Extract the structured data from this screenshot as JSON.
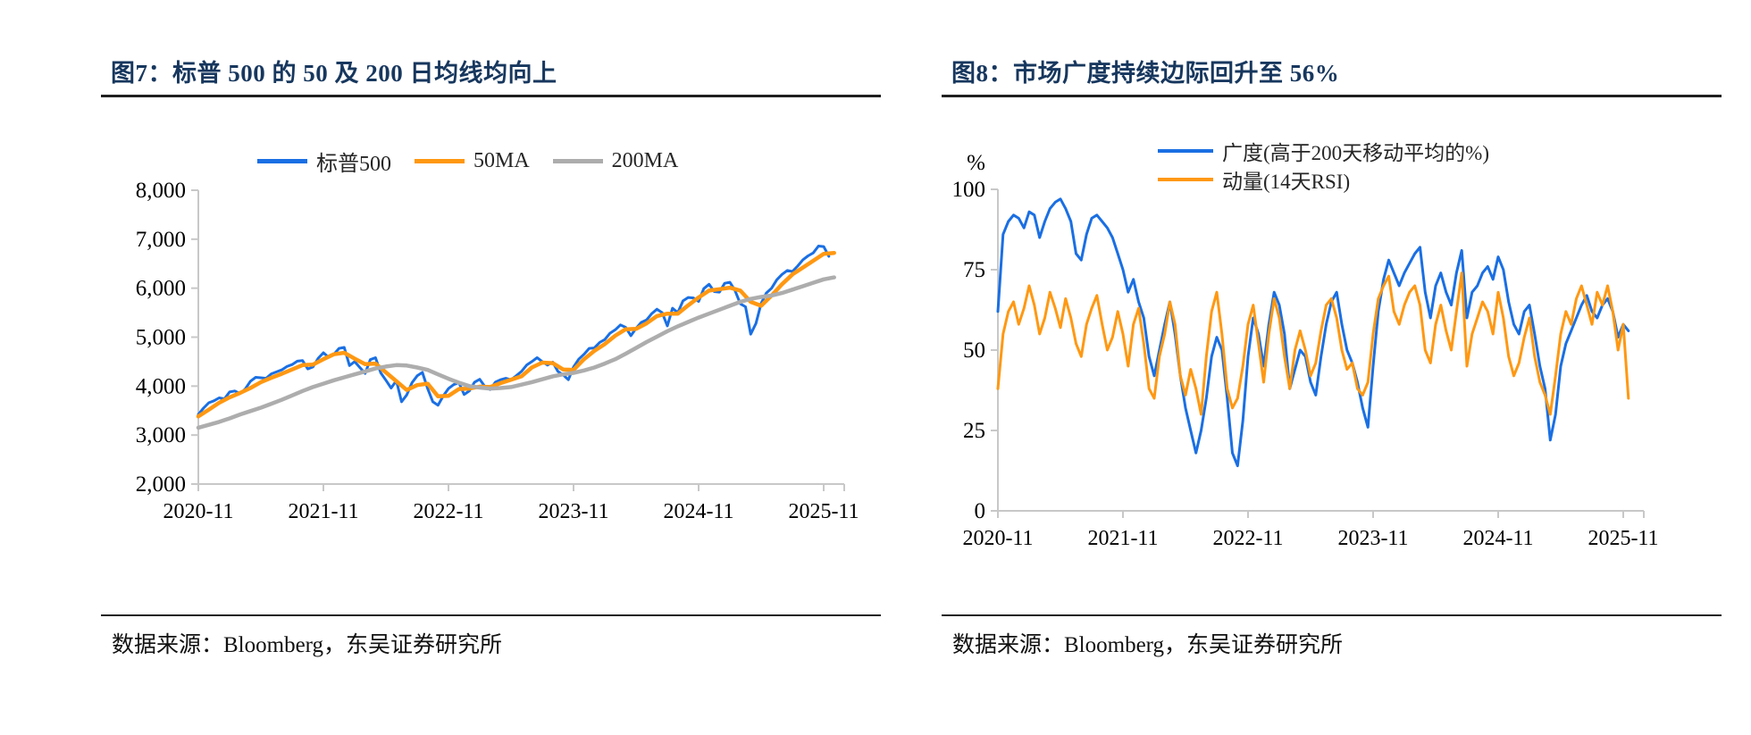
{
  "chart_data": [
    {
      "type": "line",
      "id": "fig7",
      "title": "图7：标普 500 的 50 及 200 日均线均向上",
      "source": "数据来源：Bloomberg，东吴证券研究所",
      "x_ticks": [
        "2020-11",
        "2021-11",
        "2022-11",
        "2023-11",
        "2024-11",
        "2025-11"
      ],
      "y_ticks": [
        "8,000",
        "7,000",
        "6,000",
        "5,000",
        "4,000",
        "3,000",
        "2,000"
      ],
      "y_range": [
        2000,
        8000
      ],
      "grid": false,
      "legend_position": "top-center",
      "x_unit": "months since 2020-11, 12 months per tick",
      "series": [
        {
          "name": "标普500",
          "color": "#1A6FE3",
          "points_per_month": 2,
          "values": [
            3420,
            3550,
            3660,
            3700,
            3760,
            3740,
            3880,
            3900,
            3850,
            3940,
            4100,
            4180,
            4170,
            4160,
            4250,
            4290,
            4330,
            4400,
            4440,
            4510,
            4520,
            4350,
            4390,
            4570,
            4680,
            4590,
            4650,
            4770,
            4790,
            4420,
            4500,
            4380,
            4260,
            4540,
            4580,
            4270,
            4120,
            3960,
            4110,
            3680,
            3820,
            4070,
            4210,
            4280,
            3950,
            3680,
            3610,
            3800,
            3950,
            4030,
            4070,
            3830,
            3900,
            4080,
            4140,
            3990,
            3930,
            4080,
            4130,
            4160,
            4130,
            4210,
            4300,
            4430,
            4500,
            4580,
            4500,
            4430,
            4490,
            4300,
            4230,
            4130,
            4390,
            4550,
            4650,
            4770,
            4780,
            4890,
            4950,
            5080,
            5150,
            5250,
            5200,
            5030,
            5180,
            5300,
            5350,
            5480,
            5570,
            5500,
            5230,
            5590,
            5500,
            5740,
            5810,
            5800,
            5730,
            5990,
            6080,
            5930,
            5920,
            6100,
            6120,
            5950,
            5680,
            5620,
            5060,
            5280,
            5690,
            5900,
            6000,
            6170,
            6280,
            6360,
            6340,
            6450,
            6580,
            6660,
            6720,
            6860,
            6850,
            6650
          ]
        },
        {
          "name": "50MA",
          "color": "#FF9812",
          "points_per_month": 1,
          "values": [
            3380,
            3520,
            3660,
            3770,
            3860,
            3960,
            4080,
            4170,
            4250,
            4340,
            4430,
            4440,
            4550,
            4650,
            4680,
            4560,
            4450,
            4460,
            4280,
            4100,
            3920,
            4020,
            4050,
            3790,
            3800,
            3940,
            3950,
            3990,
            3980,
            4060,
            4130,
            4200,
            4380,
            4480,
            4470,
            4340,
            4330,
            4550,
            4720,
            4860,
            5030,
            5160,
            5170,
            5280,
            5430,
            5480,
            5480,
            5650,
            5810,
            5950,
            5980,
            6010,
            5950,
            5720,
            5640,
            5850,
            6080,
            6280,
            6420,
            6560,
            6700,
            6720
          ]
        },
        {
          "name": "200MA",
          "color": "#ADADAD",
          "points_per_month": 1,
          "values": [
            3150,
            3210,
            3270,
            3340,
            3420,
            3490,
            3560,
            3640,
            3720,
            3810,
            3900,
            3980,
            4050,
            4120,
            4180,
            4240,
            4300,
            4360,
            4400,
            4430,
            4420,
            4380,
            4330,
            4240,
            4150,
            4070,
            4000,
            3970,
            3950,
            3960,
            3980,
            4030,
            4080,
            4140,
            4200,
            4240,
            4270,
            4320,
            4380,
            4460,
            4550,
            4660,
            4780,
            4900,
            5010,
            5120,
            5220,
            5310,
            5400,
            5480,
            5560,
            5640,
            5720,
            5780,
            5820,
            5850,
            5900,
            5970,
            6040,
            6110,
            6180,
            6220
          ]
        }
      ]
    },
    {
      "type": "line",
      "id": "fig8",
      "title": "图8：市场广度持续边际回升至 56%",
      "source": "数据来源：Bloomberg，东吴证券研究所",
      "y_unit": "%",
      "x_ticks": [
        "2020-11",
        "2021-11",
        "2022-11",
        "2023-11",
        "2024-11",
        "2025-11"
      ],
      "y_ticks": [
        "100",
        "75",
        "50",
        "25",
        "0"
      ],
      "y_range": [
        0,
        100
      ],
      "grid": false,
      "legend_position": "top-right",
      "x_unit": "months since 2020-11, 12 months per tick",
      "series": [
        {
          "name": "广度(高于200天移动平均的%)",
          "color": "#1A6FE3",
          "points_per_month": 2,
          "values": [
            62,
            86,
            90,
            92,
            91,
            88,
            93,
            92,
            85,
            90,
            94,
            96,
            97,
            94,
            90,
            80,
            78,
            86,
            91,
            92,
            90,
            88,
            85,
            80,
            75,
            68,
            72,
            65,
            60,
            48,
            42,
            50,
            58,
            65,
            55,
            42,
            32,
            25,
            18,
            25,
            35,
            48,
            54,
            50,
            35,
            18,
            14,
            28,
            48,
            60,
            55,
            45,
            58,
            68,
            64,
            55,
            38,
            44,
            50,
            48,
            40,
            36,
            48,
            58,
            65,
            68,
            58,
            50,
            46,
            40,
            32,
            26,
            45,
            62,
            72,
            78,
            74,
            70,
            74,
            77,
            80,
            82,
            68,
            60,
            70,
            74,
            68,
            64,
            74,
            81,
            60,
            68,
            70,
            74,
            76,
            72,
            79,
            75,
            65,
            58,
            55,
            62,
            64,
            55,
            45,
            38,
            22,
            30,
            45,
            52,
            56,
            60,
            64,
            67,
            62,
            60,
            64,
            66,
            62,
            54,
            58,
            56
          ]
        },
        {
          "name": "动量(14天RSI)",
          "color": "#FF9812",
          "points_per_month": 2,
          "values": [
            38,
            55,
            62,
            65,
            58,
            63,
            70,
            64,
            55,
            60,
            68,
            63,
            57,
            66,
            60,
            52,
            48,
            58,
            63,
            67,
            58,
            50,
            54,
            62,
            55,
            45,
            58,
            63,
            52,
            38,
            35,
            48,
            55,
            65,
            58,
            42,
            36,
            44,
            38,
            30,
            48,
            62,
            68,
            55,
            38,
            32,
            35,
            45,
            58,
            64,
            52,
            40,
            55,
            66,
            60,
            48,
            38,
            50,
            56,
            50,
            42,
            46,
            56,
            64,
            66,
            60,
            50,
            44,
            46,
            38,
            36,
            40,
            55,
            66,
            70,
            73,
            62,
            58,
            64,
            68,
            70,
            64,
            50,
            46,
            58,
            64,
            56,
            50,
            62,
            74,
            45,
            55,
            60,
            65,
            62,
            55,
            68,
            60,
            48,
            42,
            46,
            54,
            60,
            48,
            40,
            36,
            30,
            42,
            55,
            62,
            58,
            66,
            70,
            64,
            58,
            68,
            64,
            70,
            62,
            50,
            58,
            35
          ]
        }
      ]
    }
  ]
}
